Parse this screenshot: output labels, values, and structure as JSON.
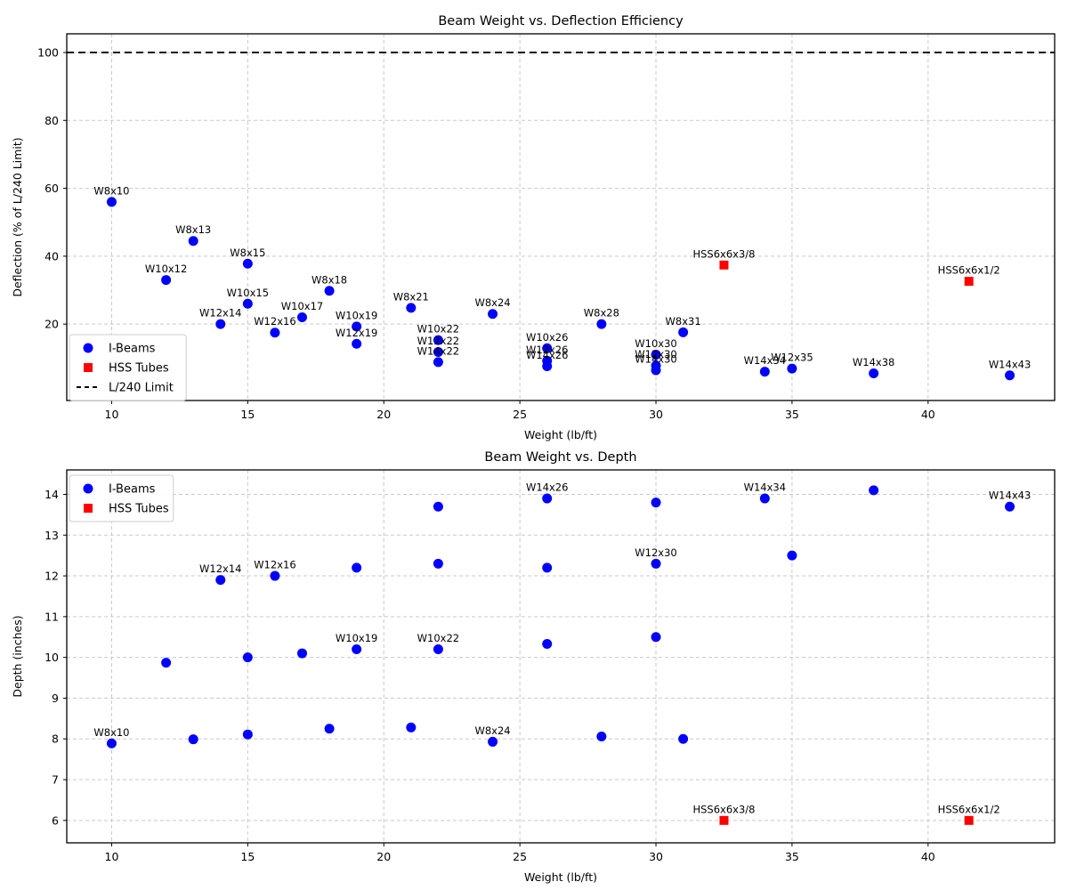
{
  "figure": {
    "background": "#ffffff"
  },
  "colors": {
    "ibeam": "#0000ff",
    "hss": "#ff0000",
    "reference": "#000000",
    "grid": "#c9c9c9",
    "legend_border": "#cccccc",
    "text": "#000000"
  },
  "chart_data": [
    {
      "type": "scatter",
      "title": "Beam Weight vs. Deflection Efficiency",
      "xlabel": "Weight (lb/ft)",
      "ylabel": "Deflection (% of L/240 Limit)",
      "xlim": [
        8.35,
        44.65
      ],
      "ylim": [
        -2.5,
        105.5
      ],
      "xticks": [
        10,
        15,
        20,
        25,
        30,
        35,
        40
      ],
      "yticks": [
        20,
        40,
        60,
        80,
        100
      ],
      "grid": true,
      "legend": {
        "position": "lower-left",
        "entries": [
          {
            "label": "I-Beams",
            "marker": "circle",
            "color": "#0000ff"
          },
          {
            "label": "HSS Tubes",
            "marker": "square",
            "color": "#ff0000"
          },
          {
            "label": "L/240 Limit",
            "marker": "dashed-line",
            "color": "#000000"
          }
        ]
      },
      "reference_line": {
        "label": "L/240 Limit",
        "y": 100,
        "color": "#000000",
        "style": "dashed"
      },
      "series": [
        {
          "name": "I-Beams",
          "marker": "circle",
          "color": "#0000ff",
          "points": [
            {
              "label": "W8x10",
              "x": 10,
              "y": 56,
              "labeled": true
            },
            {
              "label": "W10x12",
              "x": 12,
              "y": 33,
              "labeled": true
            },
            {
              "label": "W8x13",
              "x": 13,
              "y": 44.5,
              "labeled": true
            },
            {
              "label": "W12x14",
              "x": 14,
              "y": 20,
              "labeled": true
            },
            {
              "label": "W8x15",
              "x": 15,
              "y": 37.8,
              "labeled": true
            },
            {
              "label": "W10x15",
              "x": 15,
              "y": 26,
              "labeled": true
            },
            {
              "label": "W12x16",
              "x": 16,
              "y": 17.5,
              "labeled": true
            },
            {
              "label": "W10x17",
              "x": 17,
              "y": 22,
              "labeled": true
            },
            {
              "label": "W8x18",
              "x": 18,
              "y": 29.8,
              "labeled": true
            },
            {
              "label": "W10x19",
              "x": 19,
              "y": 19.3,
              "labeled": true
            },
            {
              "label": "W12x19",
              "x": 19,
              "y": 14.2,
              "labeled": true
            },
            {
              "label": "W8x21",
              "x": 21,
              "y": 24.8,
              "labeled": true
            },
            {
              "label": "W10x22",
              "x": 22,
              "y": 15.3,
              "labeled": true
            },
            {
              "label": "W12x22",
              "x": 22,
              "y": 11.8,
              "labeled": true
            },
            {
              "label": "W14x22",
              "x": 22,
              "y": 8.8,
              "labeled": true
            },
            {
              "label": "W8x24",
              "x": 24,
              "y": 23,
              "labeled": true
            },
            {
              "label": "W10x26",
              "x": 26,
              "y": 12.9,
              "labeled": true
            },
            {
              "label": "W12x26",
              "x": 26,
              "y": 9.2,
              "labeled": true
            },
            {
              "label": "W14x26",
              "x": 26,
              "y": 7.6,
              "labeled": true
            },
            {
              "label": "W8x28",
              "x": 28,
              "y": 20,
              "labeled": true
            },
            {
              "label": "W10x30",
              "x": 30,
              "y": 11,
              "labeled": true
            },
            {
              "label": "W12x30",
              "x": 30,
              "y": 7.8,
              "labeled": true
            },
            {
              "label": "W14x30",
              "x": 30,
              "y": 6.4,
              "labeled": true
            },
            {
              "label": "W8x31",
              "x": 31,
              "y": 17.6,
              "labeled": true
            },
            {
              "label": "W14x34",
              "x": 34,
              "y": 6,
              "labeled": true
            },
            {
              "label": "W12x35",
              "x": 35,
              "y": 6.9,
              "labeled": true
            },
            {
              "label": "W14x38",
              "x": 38,
              "y": 5.5,
              "labeled": true
            },
            {
              "label": "W14x43",
              "x": 43,
              "y": 4.9,
              "labeled": true
            }
          ]
        },
        {
          "name": "HSS Tubes",
          "marker": "square",
          "color": "#ff0000",
          "points": [
            {
              "label": "HSS6x6x3/8",
              "x": 32.5,
              "y": 37.4,
              "labeled": true
            },
            {
              "label": "HSS6x6x1/2",
              "x": 41.5,
              "y": 32.6,
              "labeled": true
            }
          ]
        }
      ]
    },
    {
      "type": "scatter",
      "title": "Beam Weight vs. Depth",
      "xlabel": "Weight (lb/ft)",
      "ylabel": "Depth (inches)",
      "xlim": [
        8.35,
        44.65
      ],
      "ylim": [
        5.45,
        14.6
      ],
      "xticks": [
        10,
        15,
        20,
        25,
        30,
        35,
        40
      ],
      "yticks": [
        6,
        7,
        8,
        9,
        10,
        11,
        12,
        13,
        14
      ],
      "grid": true,
      "legend": {
        "position": "upper-left",
        "entries": [
          {
            "label": "I-Beams",
            "marker": "circle",
            "color": "#0000ff"
          },
          {
            "label": "HSS Tubes",
            "marker": "square",
            "color": "#ff0000"
          }
        ]
      },
      "series": [
        {
          "name": "I-Beams",
          "marker": "circle",
          "color": "#0000ff",
          "points": [
            {
              "label": "W8x10",
              "x": 10,
              "y": 7.89,
              "labeled": true
            },
            {
              "label": "W10x12",
              "x": 12,
              "y": 9.87,
              "labeled": false
            },
            {
              "label": "W8x13",
              "x": 13,
              "y": 7.99,
              "labeled": false
            },
            {
              "label": "W12x14",
              "x": 14,
              "y": 11.9,
              "labeled": true
            },
            {
              "label": "W8x15",
              "x": 15,
              "y": 8.11,
              "labeled": false
            },
            {
              "label": "W10x15",
              "x": 15,
              "y": 10.0,
              "labeled": false
            },
            {
              "label": "W12x16",
              "x": 16,
              "y": 12.0,
              "labeled": true
            },
            {
              "label": "W10x17",
              "x": 17,
              "y": 10.1,
              "labeled": false
            },
            {
              "label": "W8x18",
              "x": 18,
              "y": 8.25,
              "labeled": false
            },
            {
              "label": "W10x19",
              "x": 19,
              "y": 10.2,
              "labeled": true
            },
            {
              "label": "W12x19",
              "x": 19,
              "y": 12.2,
              "labeled": false
            },
            {
              "label": "W8x21",
              "x": 21,
              "y": 8.28,
              "labeled": false
            },
            {
              "label": "W10x22",
              "x": 22,
              "y": 10.2,
              "labeled": true
            },
            {
              "label": "W12x22",
              "x": 22,
              "y": 12.3,
              "labeled": false
            },
            {
              "label": "W14x22",
              "x": 22,
              "y": 13.7,
              "labeled": false
            },
            {
              "label": "W8x24",
              "x": 24,
              "y": 7.93,
              "labeled": true
            },
            {
              "label": "W10x26",
              "x": 26,
              "y": 10.33,
              "labeled": false
            },
            {
              "label": "W12x26",
              "x": 26,
              "y": 12.2,
              "labeled": false
            },
            {
              "label": "W14x26",
              "x": 26,
              "y": 13.9,
              "labeled": true
            },
            {
              "label": "W8x28",
              "x": 28,
              "y": 8.06,
              "labeled": false
            },
            {
              "label": "W10x30",
              "x": 30,
              "y": 10.5,
              "labeled": false
            },
            {
              "label": "W12x30",
              "x": 30,
              "y": 12.3,
              "labeled": true
            },
            {
              "label": "W14x30",
              "x": 30,
              "y": 13.8,
              "labeled": false
            },
            {
              "label": "W8x31",
              "x": 31,
              "y": 8.0,
              "labeled": false
            },
            {
              "label": "W14x34",
              "x": 34,
              "y": 13.9,
              "labeled": true
            },
            {
              "label": "W12x35",
              "x": 35,
              "y": 12.5,
              "labeled": false
            },
            {
              "label": "W14x38",
              "x": 38,
              "y": 14.1,
              "labeled": false
            },
            {
              "label": "W14x43",
              "x": 43,
              "y": 13.7,
              "labeled": true
            }
          ]
        },
        {
          "name": "HSS Tubes",
          "marker": "square",
          "color": "#ff0000",
          "points": [
            {
              "label": "HSS6x6x3/8",
              "x": 32.5,
              "y": 6.0,
              "labeled": true
            },
            {
              "label": "HSS6x6x1/2",
              "x": 41.5,
              "y": 6.0,
              "labeled": true
            }
          ]
        }
      ]
    }
  ]
}
